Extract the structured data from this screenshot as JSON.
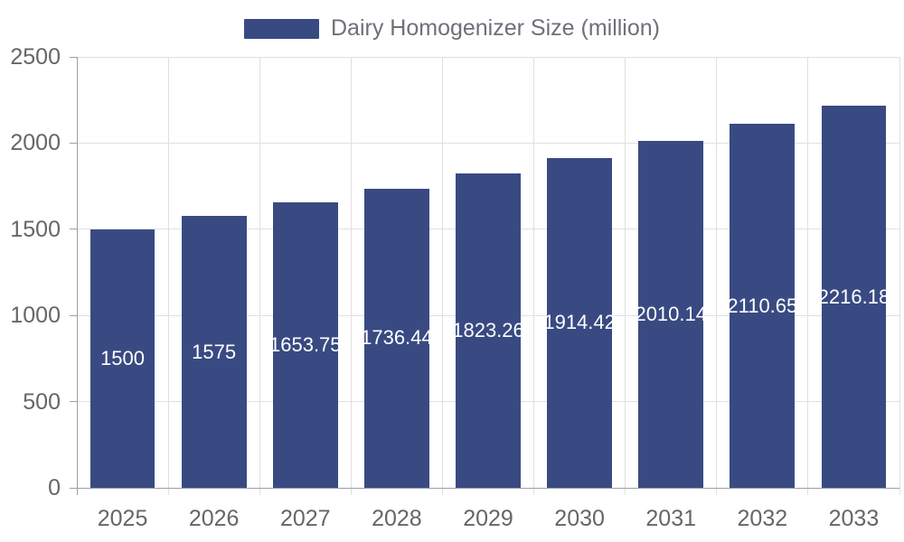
{
  "legend": {
    "label": "Dairy Homogenizer Size (million)"
  },
  "chart_data": {
    "type": "bar",
    "title": "Dairy Homogenizer Size (million)",
    "xlabel": "",
    "ylabel": "",
    "categories": [
      "2025",
      "2026",
      "2027",
      "2028",
      "2029",
      "2030",
      "2031",
      "2032",
      "2033"
    ],
    "values": [
      1500,
      1575,
      1653.75,
      1736.44,
      1823.26,
      1914.42,
      2010.14,
      2110.65,
      2216.18
    ],
    "value_labels": [
      "1500",
      "1575",
      "1653.75",
      "1736.44",
      "1823.26",
      "1914.42",
      "2010.14",
      "2110.65",
      "2216.18"
    ],
    "ylim": [
      0,
      2500
    ],
    "yticks": [
      0,
      500,
      1000,
      1500,
      2000,
      2500
    ],
    "grid": true,
    "legend_position": "top-center",
    "value_label_position": "inside-middle",
    "colors": {
      "bar": "#394A82",
      "grid": "#E0E0E0",
      "axis": "#999FA6",
      "tick_label": "#666666",
      "legend_text": "#6E7079",
      "value_label": "#FFFFFF",
      "background": "#FFFFFF"
    }
  }
}
